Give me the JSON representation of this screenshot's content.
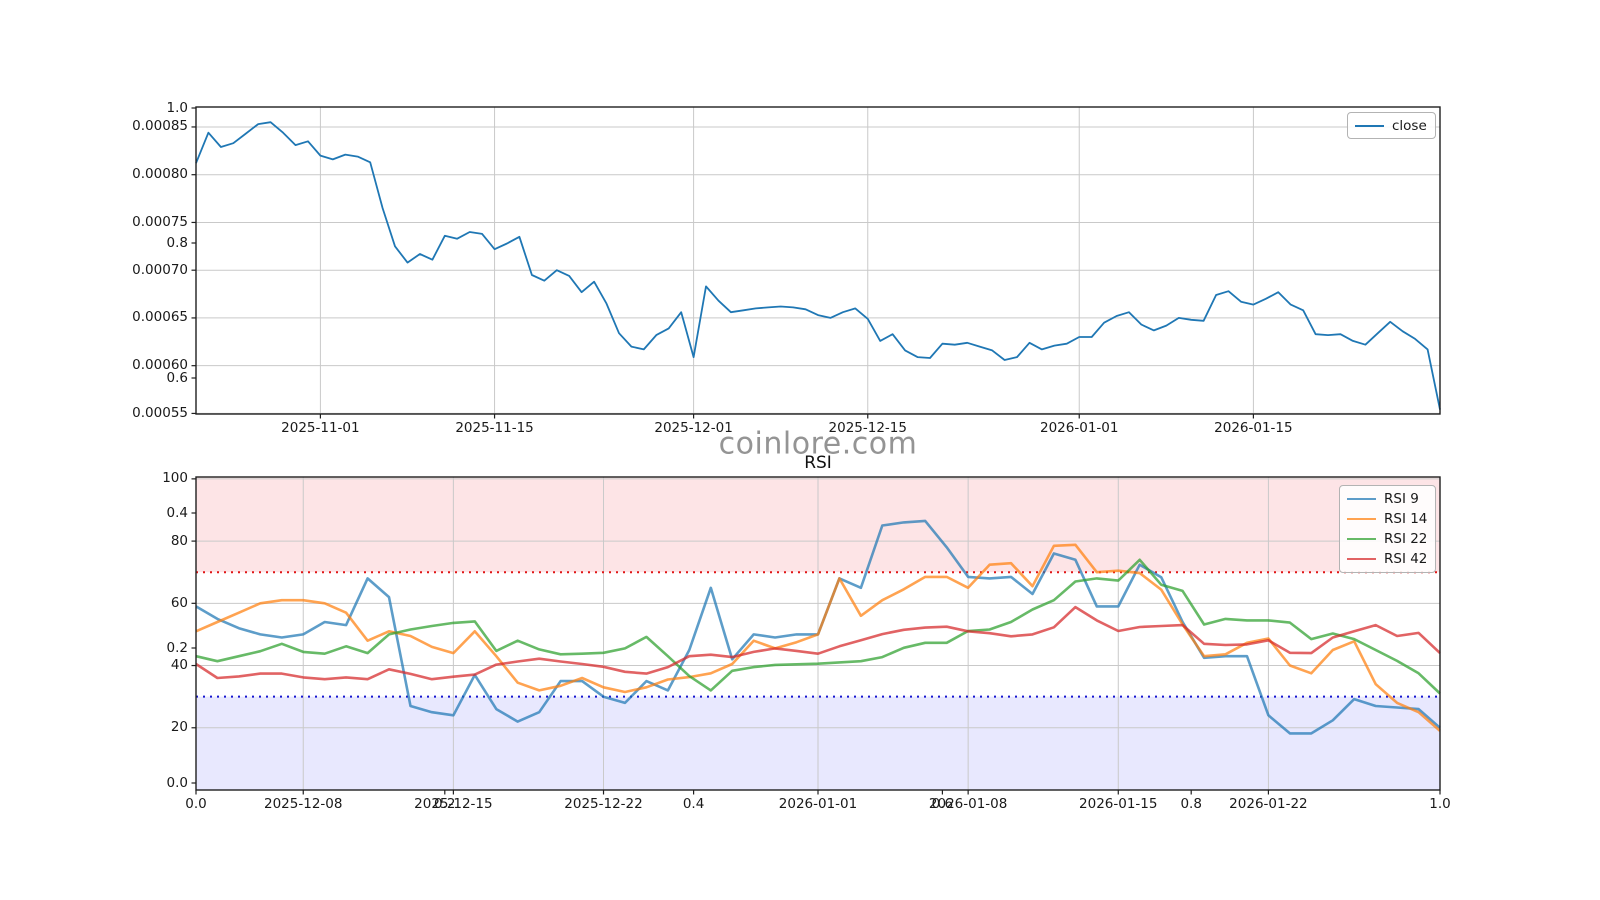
{
  "watermark": {
    "text": "coinlore.com"
  },
  "rsi_title": "RSI",
  "colors": {
    "close_line": "#1f77b4",
    "rsi9": "#1f77b4",
    "rsi14": "#ff7f0e",
    "rsi22": "#2ca02c",
    "rsi42": "#d62728",
    "overbought_band": "rgba(244,67,80,0.14)",
    "oversold_band": "rgba(90,90,245,0.14)",
    "overbought_dotted_line": "#e01515",
    "oversold_dotted_line": "#1515cf",
    "grid": "#c9c9c9",
    "spine": "#1f1f1f"
  },
  "overlay_axis": {
    "x_tick_labels": [
      "0.0",
      "0.2",
      "0.4",
      "0.6",
      "0.8",
      "1.0"
    ],
    "y_tick_labels": [
      "1.0",
      "0.8",
      "0.6",
      "0.4",
      "0.2",
      "0.0"
    ]
  },
  "chart_data": [
    {
      "type": "line",
      "title": "",
      "panel": "price",
      "grid": true,
      "legend_position": "upper right",
      "legend": [
        {
          "label": "close",
          "color": "#1f77b4"
        }
      ],
      "x_start_date": "2025-10-22",
      "x_end_date": "2026-01-30",
      "x_tick_labels": [
        {
          "label": "2025-11-01",
          "day": 10
        },
        {
          "label": "2025-11-15",
          "day": 24
        },
        {
          "label": "2025-12-01",
          "day": 40
        },
        {
          "label": "2025-12-15",
          "day": 54
        },
        {
          "label": "2026-01-01",
          "day": 71
        },
        {
          "label": "2026-01-15",
          "day": 85
        }
      ],
      "y_tick_labels": [
        {
          "label": "0.00085",
          "value": 0.00085
        },
        {
          "label": "0.00080",
          "value": 0.0008
        },
        {
          "label": "0.00075",
          "value": 0.00075
        },
        {
          "label": "0.00070",
          "value": 0.0007
        },
        {
          "label": "0.00065",
          "value": 0.00065
        },
        {
          "label": "0.00060",
          "value": 0.0006
        },
        {
          "label": "0.00055",
          "value": 0.00055
        }
      ],
      "ylim": [
        0.0005494,
        0.0008709
      ],
      "series": [
        {
          "name": "close",
          "color": "#1f77b4",
          "opacity": 1,
          "width": 1.8,
          "values": [
            0.000812,
            0.000844,
            0.000829,
            0.000833,
            0.000843,
            0.000853,
            0.000855,
            0.000844,
            0.000831,
            0.000835,
            0.00082,
            0.000816,
            0.000821,
            0.000819,
            0.000813,
            0.000765,
            0.000725,
            0.000708,
            0.000717,
            0.000711,
            0.000736,
            0.000733,
            0.00074,
            0.000738,
            0.000722,
            0.000728,
            0.000735,
            0.000695,
            0.000689,
            0.0007,
            0.000694,
            0.000677,
            0.000688,
            0.000665,
            0.000634,
            0.00062,
            0.000617,
            0.000632,
            0.000639,
            0.000656,
            0.000609,
            0.000683,
            0.000668,
            0.000656,
            0.000658,
            0.00066,
            0.000661,
            0.000662,
            0.000661,
            0.000659,
            0.000653,
            0.00065,
            0.000656,
            0.00066,
            0.000649,
            0.000626,
            0.000633,
            0.000616,
            0.000609,
            0.000608,
            0.000623,
            0.000622,
            0.000624,
            0.00062,
            0.000616,
            0.000606,
            0.000609,
            0.000624,
            0.000617,
            0.000621,
            0.000623,
            0.00063,
            0.00063,
            0.000645,
            0.000652,
            0.000656,
            0.000643,
            0.000637,
            0.000642,
            0.00065,
            0.000648,
            0.000647,
            0.000674,
            0.000678,
            0.000667,
            0.000664,
            0.00067,
            0.000677,
            0.000664,
            0.000658,
            0.000633,
            0.000632,
            0.000633,
            0.000626,
            0.000622,
            0.000634,
            0.000646,
            0.000636,
            0.000628,
            0.000617,
            0.000554
          ]
        }
      ]
    },
    {
      "type": "line",
      "title": "RSI",
      "panel": "rsi",
      "grid": true,
      "legend_position": "upper right",
      "overbought_line": 70,
      "oversold_line": 30,
      "legend": [
        {
          "label": "RSI 9",
          "color": "#1f77b4"
        },
        {
          "label": "RSI 14",
          "color": "#ff7f0e"
        },
        {
          "label": "RSI 22",
          "color": "#2ca02c"
        },
        {
          "label": "RSI 42",
          "color": "#d62728"
        }
      ],
      "x_start_date": "2025-12-03",
      "x_end_date": "2026-01-30",
      "x_tick_labels": [
        {
          "label": "2025-12-08",
          "day": 5
        },
        {
          "label": "2025-12-15",
          "day": 12
        },
        {
          "label": "2025-12-22",
          "day": 19
        },
        {
          "label": "2026-01-01",
          "day": 29
        },
        {
          "label": "2026-01-08",
          "day": 36
        },
        {
          "label": "2026-01-15",
          "day": 43
        },
        {
          "label": "2026-01-22",
          "day": 50
        }
      ],
      "y_tick_labels": [
        {
          "label": "100",
          "value": 100
        },
        {
          "label": "80",
          "value": 80
        },
        {
          "label": "60",
          "value": 60
        },
        {
          "label": "40",
          "value": 40
        },
        {
          "label": "20",
          "value": 20
        }
      ],
      "ylim": [
        0,
        100.6
      ],
      "series": [
        {
          "name": "RSI 9",
          "color": "#1f77b4",
          "opacity": 0.72,
          "width": 2.6,
          "values": [
            59,
            55,
            52,
            50,
            49,
            50,
            54,
            53,
            68,
            62,
            27,
            25,
            24,
            37,
            26,
            22,
            25,
            35,
            35,
            30,
            28,
            35,
            32,
            45,
            65,
            42,
            50,
            49,
            50,
            50,
            68,
            65,
            85,
            86,
            86.5,
            78,
            68.5,
            68,
            68.5,
            63,
            76,
            74,
            59,
            59,
            72.4,
            68.4,
            54,
            42.5,
            43,
            43,
            24,
            18.2,
            18.2,
            22.4,
            29.2,
            27,
            26.5,
            26,
            20
          ]
        },
        {
          "name": "RSI 14",
          "color": "#ff7f0e",
          "opacity": 0.72,
          "width": 2.6,
          "values": [
            51,
            54,
            57,
            60,
            61,
            61,
            60,
            57,
            48,
            51,
            49.5,
            46,
            44,
            51,
            43,
            34.5,
            32,
            33.5,
            36,
            33,
            31.5,
            33,
            35.5,
            36.3,
            37.5,
            40.5,
            48,
            45.5,
            47.5,
            50,
            68,
            56,
            61,
            64.5,
            68.5,
            68.5,
            65,
            72.4,
            72.9,
            65.5,
            78.5,
            78.8,
            70,
            70.5,
            69.7,
            64.4,
            53.2,
            43,
            43.6,
            47.3,
            48.7,
            40,
            37.5,
            45,
            47.8,
            34,
            28,
            25,
            19
          ]
        },
        {
          "name": "RSI 22",
          "color": "#2ca02c",
          "opacity": 0.72,
          "width": 2.6,
          "values": [
            43,
            41.4,
            43,
            44.6,
            47,
            44.4,
            43.8,
            46.2,
            44,
            50,
            51.6,
            52.7,
            53.7,
            54.2,
            44.7,
            48,
            45.2,
            43.6,
            43.8,
            44.1,
            45.5,
            49.2,
            43,
            36.6,
            32,
            38.3,
            39.5,
            40.2,
            40.4,
            40.6,
            41,
            41.4,
            42.7,
            45.7,
            47.3,
            47.3,
            51.1,
            51.6,
            54,
            58,
            61,
            67,
            68,
            67.3,
            74,
            66,
            64,
            53.2,
            55,
            54.5,
            54.5,
            53.8,
            48.5,
            50.3,
            48.5,
            45,
            41.5,
            37.5,
            31
          ]
        },
        {
          "name": "RSI 42",
          "color": "#d62728",
          "opacity": 0.72,
          "width": 2.6,
          "values": [
            40.5,
            36,
            36.5,
            37.4,
            37.4,
            36.2,
            35.6,
            36.2,
            35.6,
            38.8,
            37.3,
            35.6,
            36.4,
            37.1,
            40.3,
            41.3,
            42.2,
            41.3,
            40.5,
            39.6,
            38,
            37.4,
            39.5,
            43,
            43.5,
            42.7,
            44.4,
            45.5,
            44.7,
            43.8,
            46.2,
            48.1,
            50.1,
            51.5,
            52.2,
            52.5,
            51,
            50.4,
            49.4,
            50,
            52.3,
            58.8,
            54.5,
            51.1,
            52.4,
            52.7,
            53,
            47,
            46.6,
            46.8,
            48.1,
            44.1,
            44,
            49,
            51,
            53,
            49.5,
            50.5,
            44
          ]
        }
      ]
    }
  ]
}
